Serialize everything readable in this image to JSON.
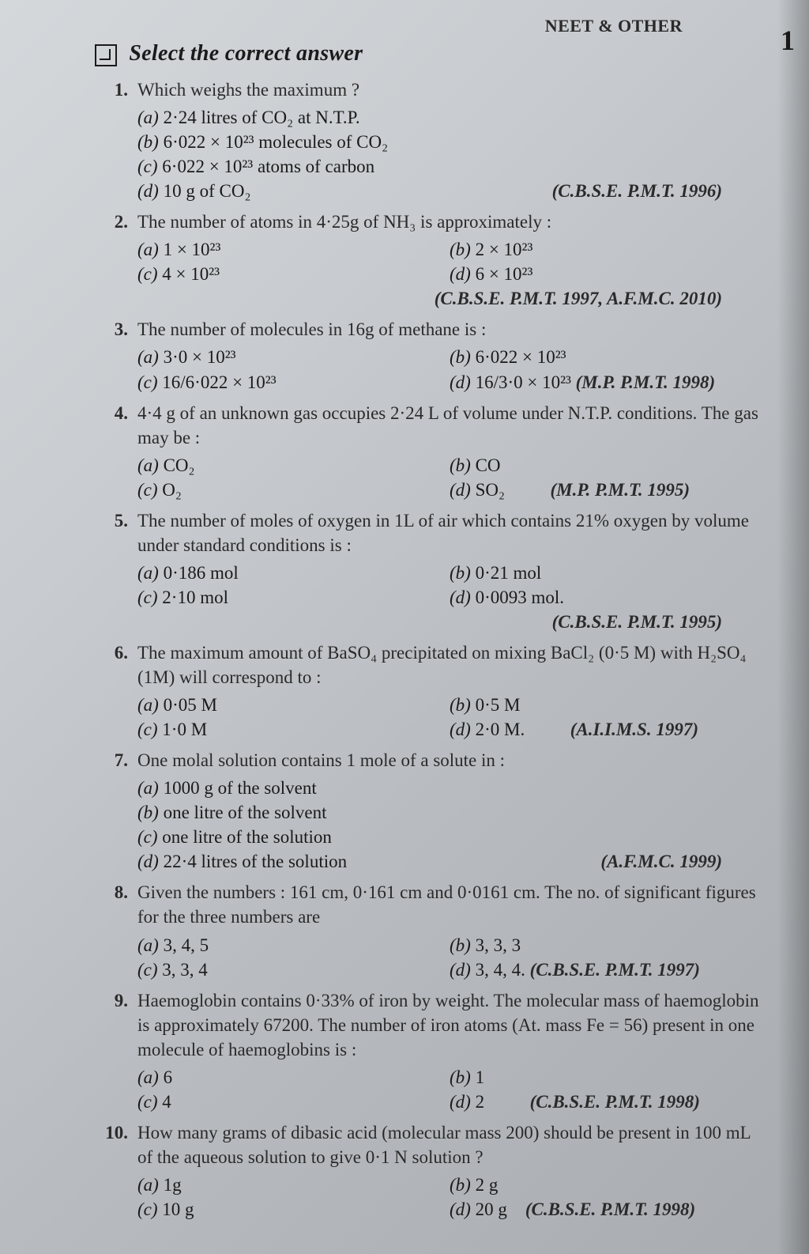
{
  "header_partial": "NEET & OTHER",
  "top_right_num": "1",
  "section_title": "Select the correct answer",
  "questions": [
    {
      "num": "1.",
      "text": "Which weighs the maximum ?",
      "opts": {
        "a": "2·24 litres of CO₂ at N.T.P.",
        "b": "6·022 × 10²³ molecules of CO₂",
        "c": "6·022 × 10²³ atoms of carbon",
        "d": "10 g of CO₂"
      },
      "ref": "(C.B.S.E. P.M.T. 1996)"
    },
    {
      "num": "2.",
      "text": "The number of atoms in 4·25g of NH₃ is approximately :",
      "opts": {
        "a": "1 × 10²³",
        "b": "2 × 10²³",
        "c": "4 × 10²³",
        "d": "6 × 10²³"
      },
      "ref": "(C.B.S.E. P.M.T. 1997, A.F.M.C. 2010)"
    },
    {
      "num": "3.",
      "text": "The number of molecules in 16g of methane is :",
      "opts": {
        "a": "3·0 × 10²³",
        "b": "6·022 × 10²³",
        "c": "16/6·022 × 10²³",
        "d": "16/3·0 × 10²³"
      },
      "ref": "(M.P. P.M.T. 1998)"
    },
    {
      "num": "4.",
      "text": "4·4 g of an unknown gas occupies 2·24 L of volume under N.T.P. conditions. The gas may be :",
      "opts": {
        "a": "CO₂",
        "b": "CO",
        "c": "O₂",
        "d": "SO₂"
      },
      "ref": "(M.P. P.M.T. 1995)"
    },
    {
      "num": "5.",
      "text": "The number of moles of oxygen in 1L of air which contains 21% oxygen by volume under standard conditions is :",
      "opts": {
        "a": "0·186 mol",
        "b": "0·21 mol",
        "c": "2·10 mol",
        "d": "0·0093 mol."
      },
      "ref": "(C.B.S.E. P.M.T. 1995)"
    },
    {
      "num": "6.",
      "text": "The maximum amount of BaSO₄ precipitated on mixing BaCl₂ (0·5 M) with H₂SO₄ (1M) will correspond to :",
      "opts": {
        "a": "0·05 M",
        "b": "0·5 M",
        "c": "1·0 M",
        "d": "2·0 M."
      },
      "ref": "(A.I.I.M.S. 1997)"
    },
    {
      "num": "7.",
      "text": "One molal solution contains 1 mole of a solute in :",
      "opts": {
        "a": "1000 g of the solvent",
        "b": "one litre of the solvent",
        "c": "one litre of the solution",
        "d": "22·4 litres of the solution"
      },
      "ref": "(A.F.M.C. 1999)"
    },
    {
      "num": "8.",
      "text": "Given the numbers : 161 cm, 0·161 cm and 0·0161 cm. The no. of significant figures for the three numbers are",
      "opts": {
        "a": "3, 4, 5",
        "b": "3, 3, 3",
        "c": "3, 3, 4",
        "d": "3, 4, 4."
      },
      "ref": "(C.B.S.E. P.M.T. 1997)"
    },
    {
      "num": "9.",
      "text": "Haemoglobin contains 0·33% of iron by weight. The molecular mass of haemoglobin is approximately 67200. The number of iron atoms (At. mass Fe = 56) present in one molecule of haemoglobins is :",
      "opts": {
        "a": "6",
        "b": "1",
        "c": "4",
        "d": "2"
      },
      "ref": "(C.B.S.E. P.M.T. 1998)"
    },
    {
      "num": "10.",
      "text": "How many grams of dibasic acid (molecular mass 200) should be present in 100 mL of the aqueous solution to give 0·1 N solution ?",
      "opts": {
        "a": "1g",
        "b": "2 g",
        "c": "10 g",
        "d": "20 g"
      },
      "ref": "(C.B.S.E. P.M.T. 1998)"
    }
  ]
}
